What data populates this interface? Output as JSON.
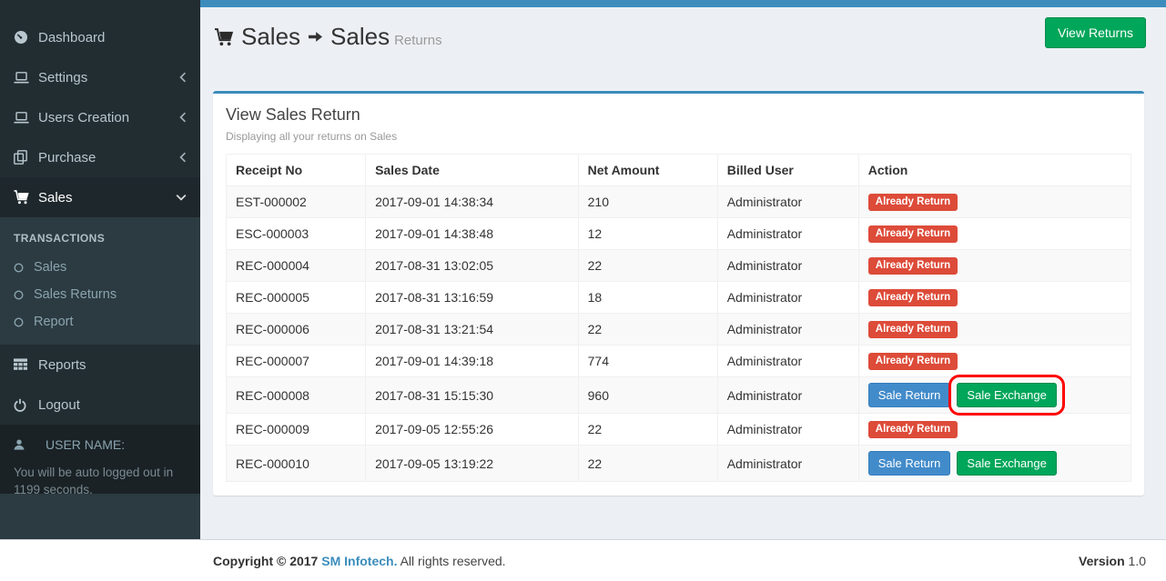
{
  "sidebar": {
    "items": [
      {
        "label": "Dashboard",
        "icon": "dashboard-icon"
      },
      {
        "label": "Settings",
        "icon": "laptop-icon",
        "chevron": "chevron-left-icon"
      },
      {
        "label": "Users Creation",
        "icon": "laptop-icon",
        "chevron": "chevron-left-icon"
      },
      {
        "label": "Purchase",
        "icon": "copy-icon",
        "chevron": "chevron-left-icon"
      },
      {
        "label": "Sales",
        "icon": "cart-icon",
        "chevron": "chevron-down-icon",
        "active": true
      }
    ],
    "submenu": {
      "header": "TRANSACTIONS",
      "items": [
        {
          "label": "Sales",
          "icon": "circle-icon"
        },
        {
          "label": "Sales Returns",
          "icon": "circle-icon"
        },
        {
          "label": "Report",
          "icon": "circle-icon"
        }
      ]
    },
    "items_bottom": [
      {
        "label": "Reports",
        "icon": "table-icon"
      },
      {
        "label": "Logout",
        "icon": "power-icon"
      }
    ],
    "user_panel": {
      "icon": "user-icon",
      "label": "USER NAME:",
      "note": "You will be auto logged out in 1199 seconds."
    }
  },
  "header": {
    "icon": "cart-icon",
    "breadcrumb_root": "Sales",
    "arrow_icon": "arrow-right-icon",
    "title": "Sales",
    "subtitle": "Returns",
    "button": "View Returns"
  },
  "panel": {
    "title": "View Sales Return",
    "subtitle": "Displaying all your returns on Sales"
  },
  "table": {
    "columns": [
      "Receipt No",
      "Sales Date",
      "Net Amount",
      "Billed User",
      "Action"
    ],
    "rows": [
      {
        "receipt": "EST-000002",
        "date": "2017-09-01 14:38:34",
        "amount": "210",
        "user": "Administrator",
        "actions": [
          {
            "style": "badge",
            "label": "Already Return"
          }
        ]
      },
      {
        "receipt": "ESC-000003",
        "date": "2017-09-01 14:38:48",
        "amount": "12",
        "user": "Administrator",
        "actions": [
          {
            "style": "badge",
            "label": "Already Return"
          }
        ]
      },
      {
        "receipt": "REC-000004",
        "date": "2017-08-31 13:02:05",
        "amount": "22",
        "user": "Administrator",
        "actions": [
          {
            "style": "badge",
            "label": "Already Return"
          }
        ]
      },
      {
        "receipt": "REC-000005",
        "date": "2017-08-31 13:16:59",
        "amount": "18",
        "user": "Administrator",
        "actions": [
          {
            "style": "badge",
            "label": "Already Return"
          }
        ]
      },
      {
        "receipt": "REC-000006",
        "date": "2017-08-31 13:21:54",
        "amount": "22",
        "user": "Administrator",
        "actions": [
          {
            "style": "badge",
            "label": "Already Return"
          }
        ]
      },
      {
        "receipt": "REC-000007",
        "date": "2017-09-01 14:39:18",
        "amount": "774",
        "user": "Administrator",
        "actions": [
          {
            "style": "badge",
            "label": "Already Return"
          }
        ]
      },
      {
        "receipt": "REC-000008",
        "date": "2017-08-31 15:15:30",
        "amount": "960",
        "user": "Administrator",
        "actions": [
          {
            "style": "primary",
            "label": "Sale Return"
          },
          {
            "style": "success",
            "label": "Sale Exchange",
            "highlighted": true
          }
        ]
      },
      {
        "receipt": "REC-000009",
        "date": "2017-09-05 12:55:26",
        "amount": "22",
        "user": "Administrator",
        "actions": [
          {
            "style": "badge",
            "label": "Already Return"
          }
        ]
      },
      {
        "receipt": "REC-000010",
        "date": "2017-09-05 13:19:22",
        "amount": "22",
        "user": "Administrator",
        "actions": [
          {
            "style": "primary",
            "label": "Sale Return"
          },
          {
            "style": "success",
            "label": "Sale Exchange"
          }
        ]
      }
    ]
  },
  "footer": {
    "copyright_prefix": "Copyright © 2017",
    "company": "SM Infotech.",
    "copyright_suffix": "All rights reserved.",
    "version_label": "Version",
    "version": "1.0"
  },
  "colors": {
    "accent_blue": "#3c8dbc",
    "success_green": "#00a65a",
    "danger_red": "#dd4b39",
    "primary_blue": "#428bca",
    "highlight_red": "#ff0000",
    "sidebar_bg": "#222d32",
    "sidebar_active_bg": "#1e282c",
    "submenu_bg": "#2c3b41",
    "content_bg": "#ecf0f5"
  }
}
